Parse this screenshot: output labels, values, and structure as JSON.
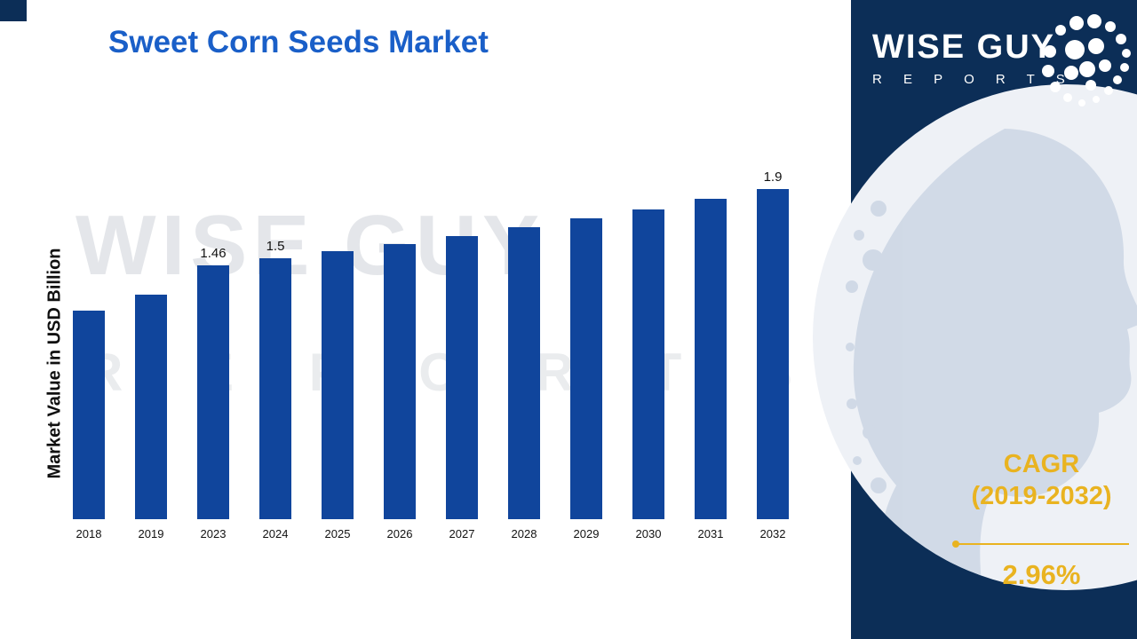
{
  "title": "Sweet Corn Seeds Market",
  "y_axis_label": "Market Value in USD Billion",
  "watermark": {
    "line1": "WISE GUY",
    "line2": "R E P O R T S"
  },
  "logo": {
    "name_line": "WISE GUY",
    "reports_line": "R E P O R T S"
  },
  "cagr": {
    "label": "CAGR",
    "range": "(2019-2032)",
    "value": "2.96%"
  },
  "colors": {
    "bar": "#10459c",
    "title": "#1a5fc8",
    "panel": "#0c2e57",
    "accent_yellow": "#e9b320",
    "watermark_gray": "#d3d6db"
  },
  "chart_data": {
    "type": "bar",
    "categories": [
      "2018",
      "2019",
      "2023",
      "2024",
      "2025",
      "2026",
      "2027",
      "2028",
      "2029",
      "2030",
      "2031",
      "2032"
    ],
    "values": [
      1.2,
      1.29,
      1.46,
      1.5,
      1.54,
      1.58,
      1.63,
      1.68,
      1.73,
      1.78,
      1.84,
      1.9
    ],
    "bar_labels": [
      null,
      null,
      "1.46",
      "1.5",
      null,
      null,
      null,
      null,
      null,
      null,
      null,
      "1.9"
    ],
    "title": "Sweet Corn Seeds Market",
    "xlabel": "",
    "ylabel": "Market Value in USD Billion",
    "ylim": [
      0,
      2
    ],
    "grid": false,
    "legend": false
  }
}
